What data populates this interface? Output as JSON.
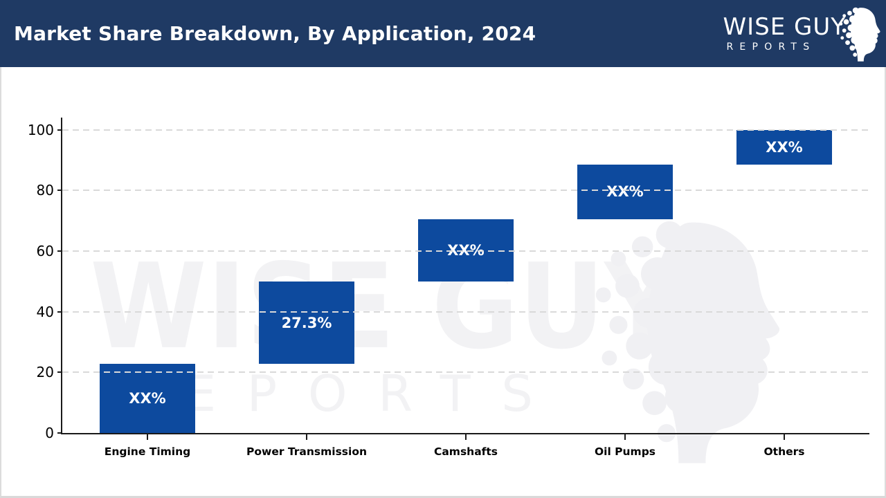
{
  "header": {
    "title": "Market Share Breakdown, By Application, 2024",
    "background": "#1f3a64",
    "logo": {
      "brand_line1": "WISE GUY",
      "brand_line2": "REPORTS"
    }
  },
  "watermark": {
    "line1": "WISE GUY",
    "line2": "REPORTS"
  },
  "chart_data": {
    "type": "bar",
    "subtype": "floating-waterfall",
    "title": "Market Share Breakdown, By Application, 2024",
    "categories": [
      "Engine Timing",
      "Power Transmission",
      "Camshafts",
      "Oil Pumps",
      "Others"
    ],
    "segments": [
      {
        "category": "Engine Timing",
        "start": 0,
        "end": 22.7,
        "height": 22.7,
        "label": "XX%"
      },
      {
        "category": "Power Transmission",
        "start": 22.7,
        "end": 50,
        "height": 27.3,
        "label": "27.3%"
      },
      {
        "category": "Camshafts",
        "start": 50,
        "end": 70.5,
        "height": 20.5,
        "label": "XX%"
      },
      {
        "category": "Oil Pumps",
        "start": 70.5,
        "end": 88.6,
        "height": 18.1,
        "label": "XX%"
      },
      {
        "category": "Others",
        "start": 88.6,
        "end": 100,
        "height": 11.4,
        "label": "XX%"
      }
    ],
    "ylim": [
      0,
      104
    ],
    "yticks": [
      0,
      20,
      40,
      60,
      80,
      100
    ],
    "xlabel": "",
    "ylabel": "",
    "legend": "none",
    "grid": {
      "horizontal": true,
      "style": "dashed",
      "color": "#d9d9d9"
    },
    "bar_color": "#0d4a9e",
    "bar_label_color": "#ffffff",
    "axis_color": "#1a1a1a"
  }
}
